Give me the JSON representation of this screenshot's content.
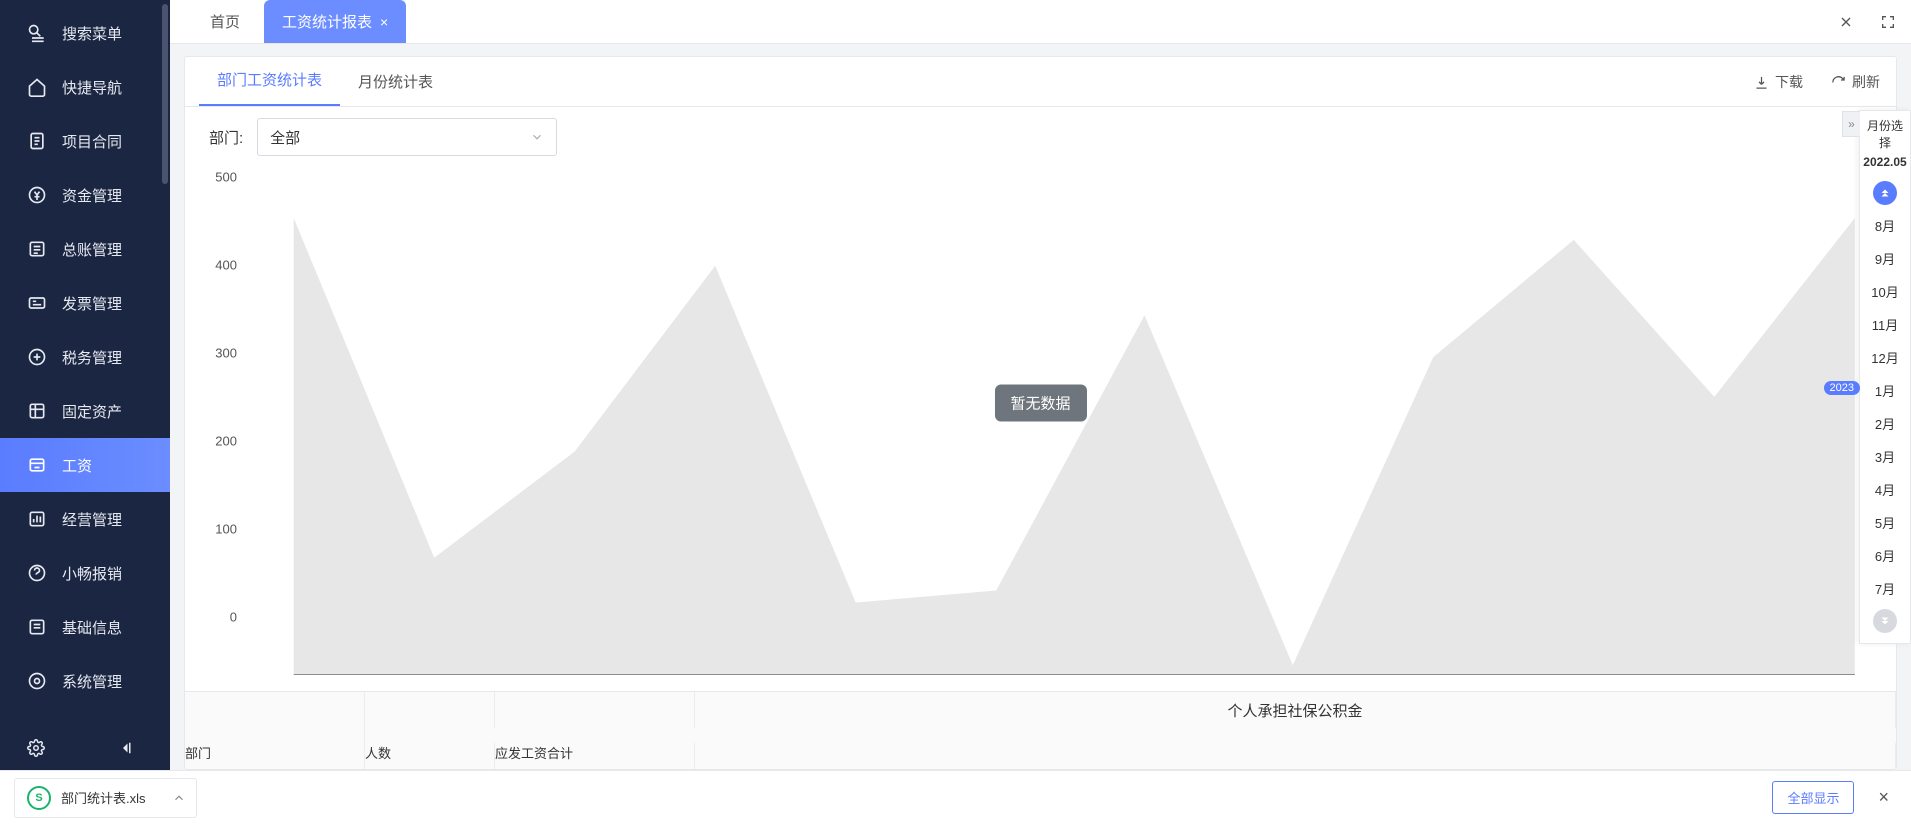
{
  "sidebar": {
    "items": [
      {
        "label": "搜索菜单",
        "icon": "search-list"
      },
      {
        "label": "快捷导航",
        "icon": "home"
      },
      {
        "label": "项目合同",
        "icon": "doc"
      },
      {
        "label": "资金管理",
        "icon": "money"
      },
      {
        "label": "总账管理",
        "icon": "ledger"
      },
      {
        "label": "发票管理",
        "icon": "invoice"
      },
      {
        "label": "税务管理",
        "icon": "tax"
      },
      {
        "label": "固定资产",
        "icon": "asset"
      },
      {
        "label": "工资",
        "icon": "salary",
        "active": true
      },
      {
        "label": "经营管理",
        "icon": "mgmt"
      },
      {
        "label": "小畅报销",
        "icon": "expense"
      },
      {
        "label": "基础信息",
        "icon": "info"
      },
      {
        "label": "系统管理",
        "icon": "system"
      }
    ]
  },
  "tabs": {
    "home_label": "首页",
    "active_label": "工资统计报表"
  },
  "panel": {
    "tab1": "部门工资统计表",
    "tab2": "月份统计表",
    "download_label": "下载",
    "refresh_label": "刷新"
  },
  "filter": {
    "label": "部门:",
    "selected": "全部"
  },
  "chart": {
    "type": "area",
    "no_data_label": "暂无数据",
    "ylim": [
      0,
      500
    ],
    "ytick_step": 100,
    "yticks": [
      0,
      100,
      200,
      300,
      400,
      500
    ],
    "fill_color": "#e7e7e7",
    "axis_color": "#555555",
    "tick_font_size": 13,
    "points": [
      {
        "x": 0.0,
        "y": 460
      },
      {
        "x": 0.09,
        "y": 118
      },
      {
        "x": 0.18,
        "y": 225
      },
      {
        "x": 0.27,
        "y": 412
      },
      {
        "x": 0.36,
        "y": 73
      },
      {
        "x": 0.45,
        "y": 85
      },
      {
        "x": 0.545,
        "y": 362
      },
      {
        "x": 0.64,
        "y": 10
      },
      {
        "x": 0.73,
        "y": 320
      },
      {
        "x": 0.82,
        "y": 438
      },
      {
        "x": 0.91,
        "y": 280
      },
      {
        "x": 1.0,
        "y": 460
      }
    ]
  },
  "table": {
    "columns": {
      "col1": "部门",
      "col2": "人数",
      "col3": "应发工资合计",
      "group": "个人承担社保公积金"
    }
  },
  "month_selector": {
    "title": "月份选择",
    "current": "2022.05",
    "year_tag": "2023",
    "items": [
      "8月",
      "9月",
      "10月",
      "11月",
      "12月",
      "1月",
      "2月",
      "3月",
      "4月",
      "5月",
      "6月",
      "7月"
    ]
  },
  "download_bar": {
    "filename": "部门统计表.xls",
    "show_all": "全部显示"
  },
  "colors": {
    "sidebar_bg": "#1b2642",
    "accent": "#5a7cff",
    "accent2": "#6b8dff",
    "border": "#e6e8ec",
    "chart_fill": "#e7e7e7",
    "badge_bg": "#6f757d"
  }
}
